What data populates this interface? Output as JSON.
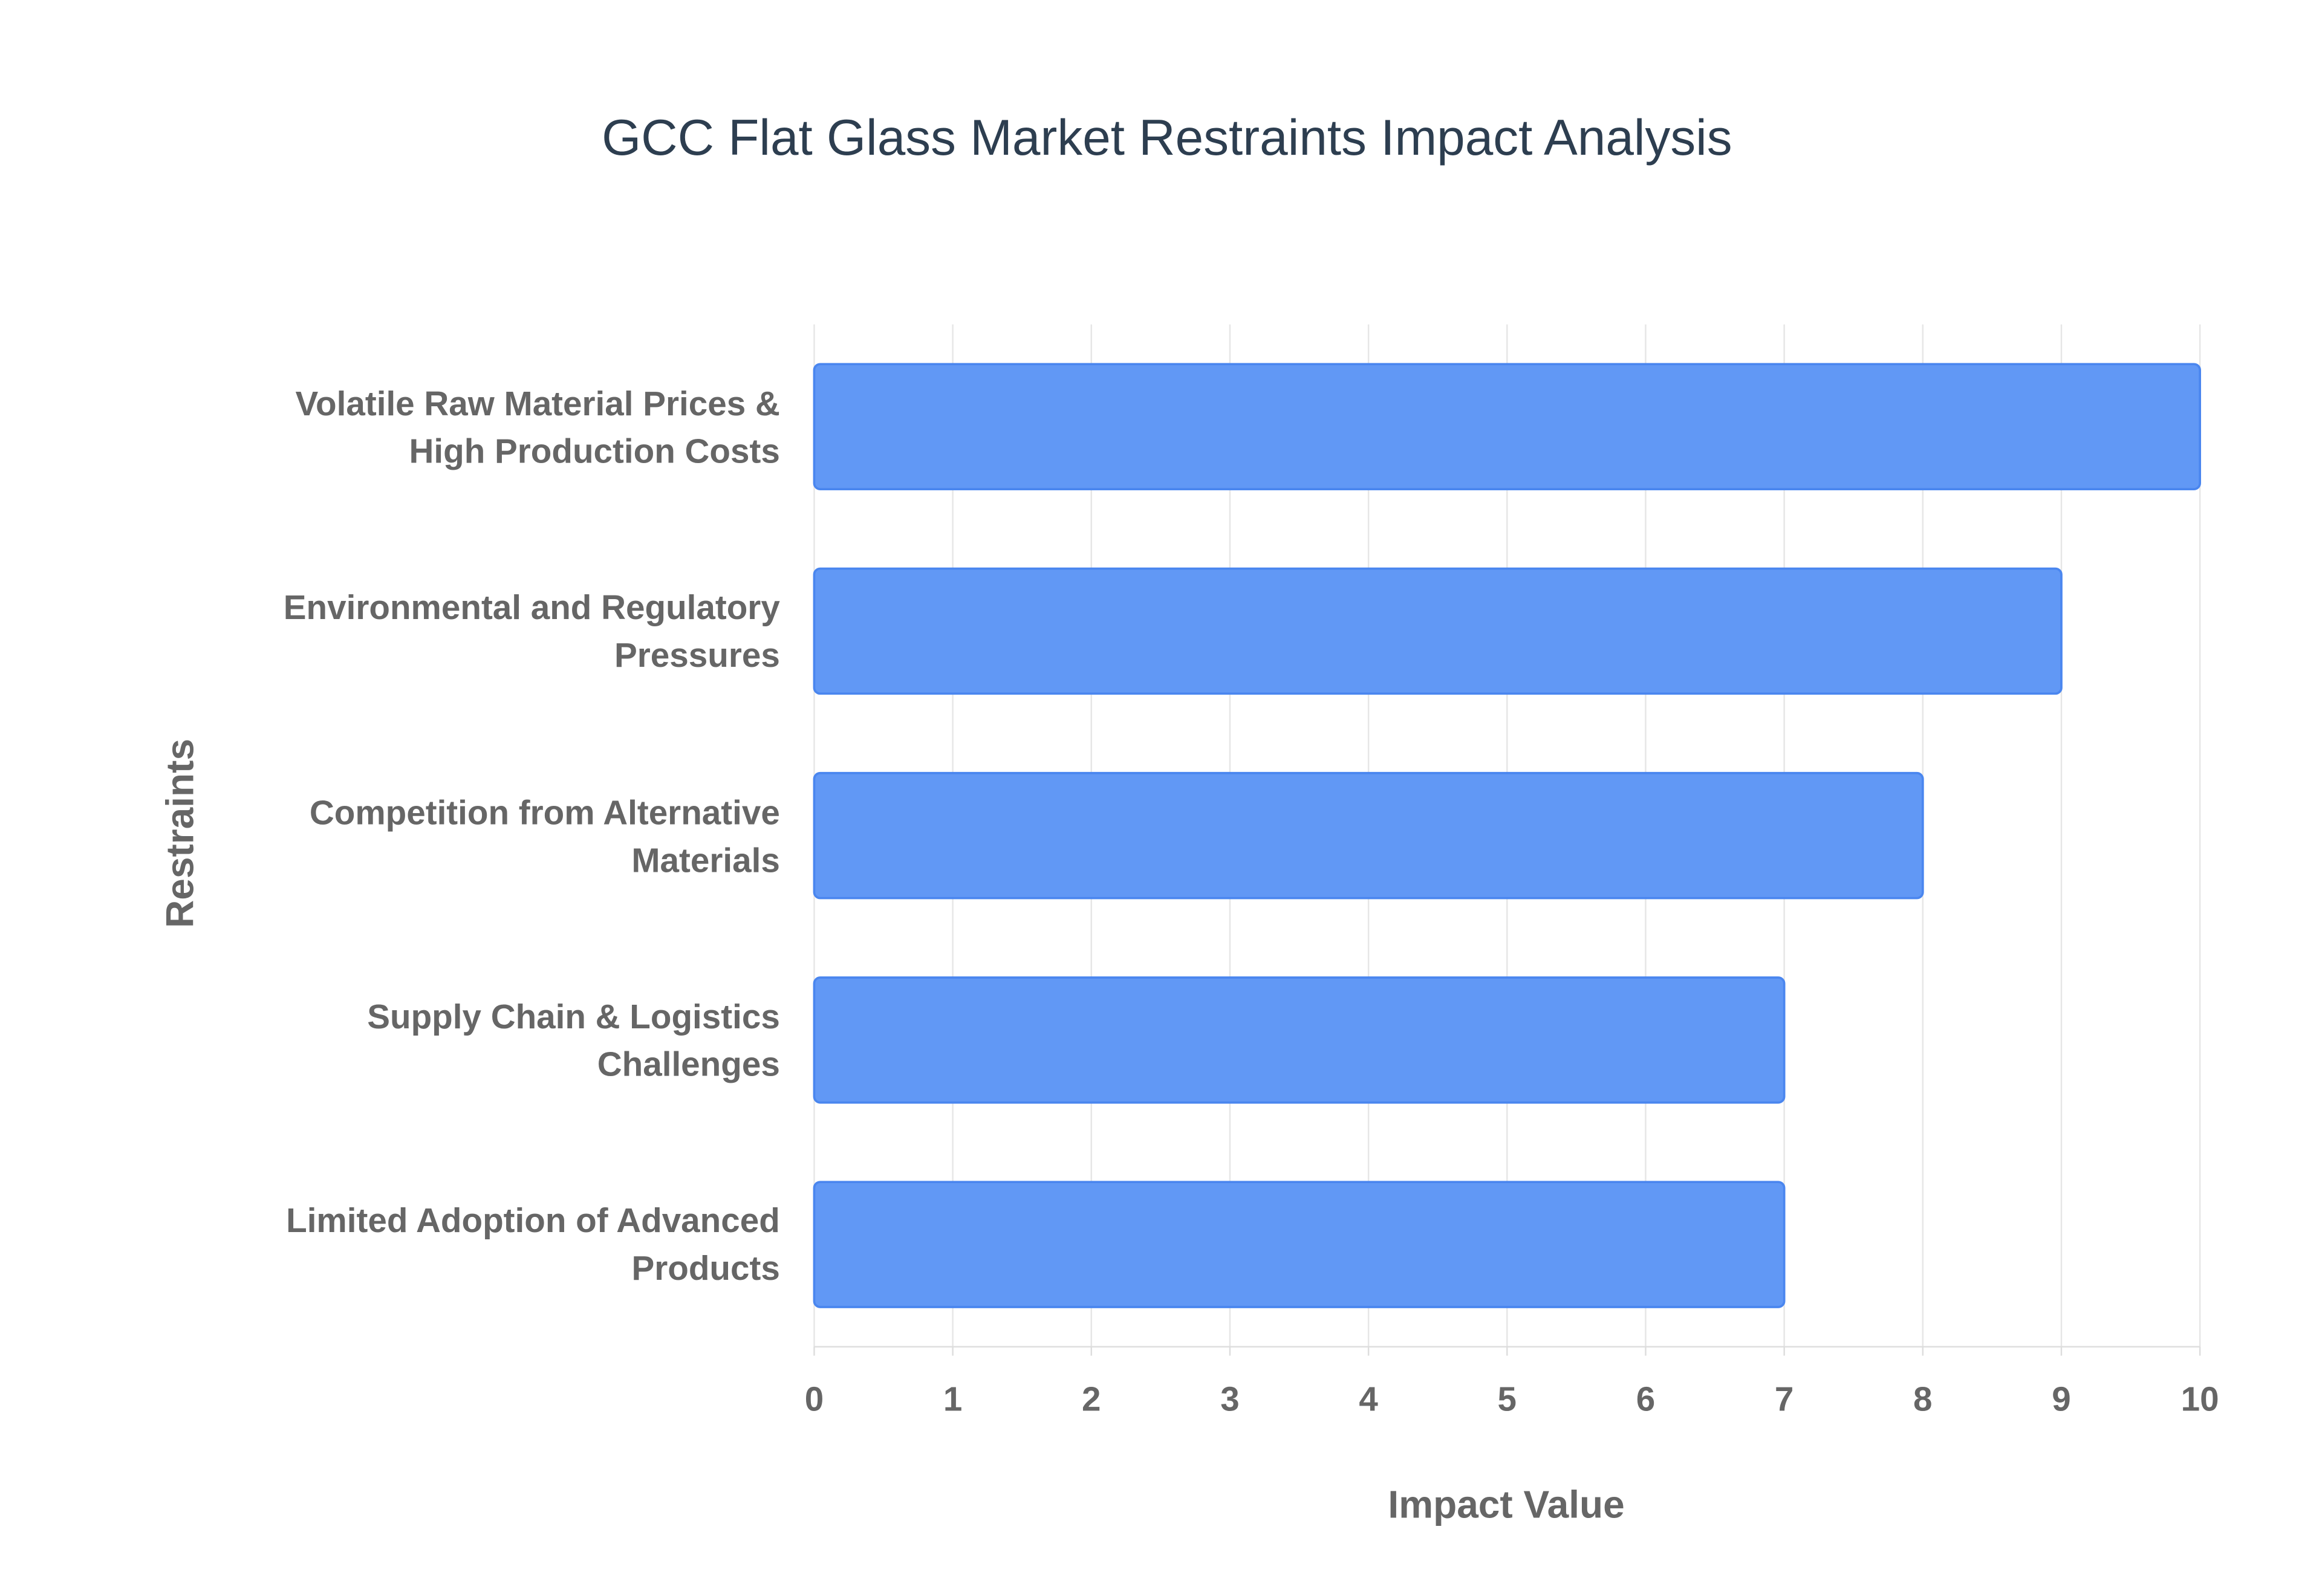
{
  "chart_data": {
    "type": "bar",
    "orientation": "horizontal",
    "title": "GCC Flat Glass Market Restraints Impact Analysis",
    "x_label": "Impact Value",
    "y_label": "Restraints",
    "categories": [
      "Volatile Raw Material Prices &\nHigh Production Costs",
      "Environmental and Regulatory\nPressures",
      "Competition from Alternative\nMaterials",
      "Supply Chain & Logistics\nChallenges",
      "Limited Adoption of Advanced\nProducts"
    ],
    "values": [
      10,
      9,
      8,
      7,
      7
    ],
    "color": "#6198f5",
    "xlim": [
      0,
      10
    ],
    "xticks": [
      0,
      1,
      2,
      3,
      4,
      5,
      6,
      7,
      8,
      9,
      10
    ],
    "grid": true
  }
}
